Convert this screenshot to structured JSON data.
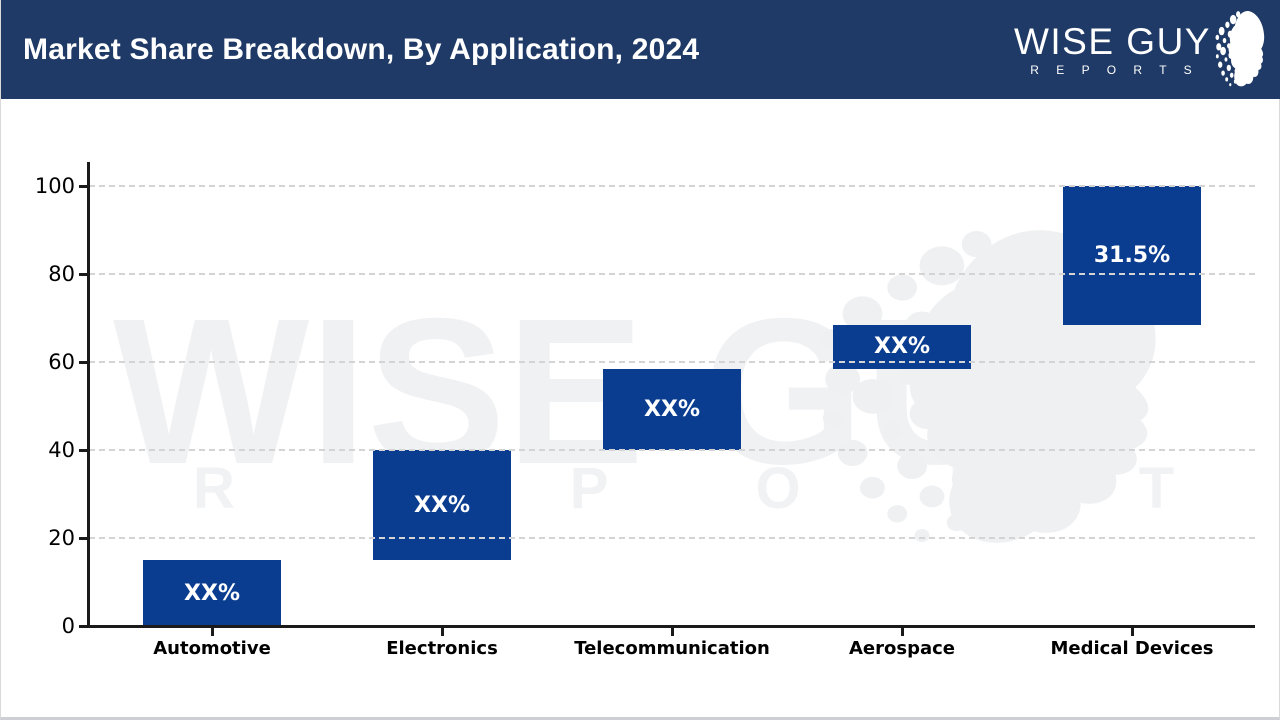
{
  "header": {
    "title": "Market Share Breakdown, By Application, 2024",
    "logo": {
      "line1": "WISE GUY",
      "line2": "R E P O R T S"
    }
  },
  "watermark": {
    "line1": "WISE GUY",
    "line2": "R E P O R T S"
  },
  "colors": {
    "header_bg": "#1F3A66",
    "bar_blue": "#0A3D8F",
    "grid_gray": "#D4D4D4",
    "axis_black": "#1A1A1A",
    "bar_label_text": "#FFFFFF",
    "watermark_gray": "#F0F1F3"
  },
  "chart_data": {
    "type": "bar",
    "subtype": "waterfall",
    "title": "Market Share Breakdown, By Application, 2024",
    "categories": [
      "Automotive",
      "Electronics",
      "Telecommunication",
      "Aerospace",
      "Medical Devices"
    ],
    "bars": [
      {
        "category": "Automotive",
        "start": 0,
        "end": 15,
        "value": 15,
        "label": "XX%"
      },
      {
        "category": "Electronics",
        "start": 15,
        "end": 40,
        "value": 25,
        "label": "XX%"
      },
      {
        "category": "Telecommunication",
        "start": 40,
        "end": 58.5,
        "value": 18.5,
        "label": "XX%"
      },
      {
        "category": "Aerospace",
        "start": 58.5,
        "end": 68.5,
        "value": 10,
        "label": "XX%"
      },
      {
        "category": "Medical Devices",
        "start": 68.5,
        "end": 100,
        "value": 31.5,
        "label": "31.5%"
      }
    ],
    "yticks": [
      0,
      20,
      40,
      60,
      80,
      100
    ],
    "ylim": [
      0,
      100
    ],
    "xlabel": "",
    "ylabel": "",
    "grid": "horizontal-dashed",
    "legend": "none"
  }
}
